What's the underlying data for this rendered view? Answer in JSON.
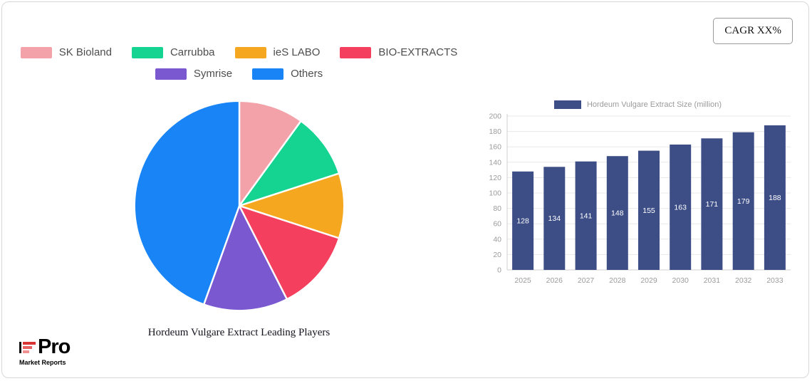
{
  "cagr": {
    "label": "CAGR XX%"
  },
  "logo": {
    "name": "Pro",
    "subtitle": "Market Reports"
  },
  "chart_data": [
    {
      "type": "pie",
      "title": "Hordeum Vulgare Extract Leading Players",
      "legend_split": 4,
      "legend_position": "top",
      "slices": [
        {
          "label": "SK Bioland",
          "value": 10,
          "color": "#f2a2a8"
        },
        {
          "label": "Carrubba",
          "value": 10,
          "color": "#15d492"
        },
        {
          "label": "ieS LABO",
          "value": 10,
          "color": "#f5a81f"
        },
        {
          "label": "BIO-EXTRACTS",
          "value": 12.5,
          "color": "#f43f5e"
        },
        {
          "label": "Symrise",
          "value": 13,
          "color": "#7a58d0"
        },
        {
          "label": "Others",
          "value": 44.5,
          "color": "#1884f5"
        }
      ]
    },
    {
      "type": "bar",
      "legend": "Hordeum Vulgare Extract Size (million)",
      "categories": [
        "2025",
        "2026",
        "2027",
        "2028",
        "2029",
        "2030",
        "2031",
        "2032",
        "2033"
      ],
      "values": [
        128,
        134,
        141,
        148,
        155,
        163,
        171,
        179,
        188
      ],
      "ylim": [
        0,
        200
      ],
      "ytick_step": 20,
      "bar_color": "#3d4e87",
      "grid": true,
      "legend_position": "top"
    }
  ]
}
